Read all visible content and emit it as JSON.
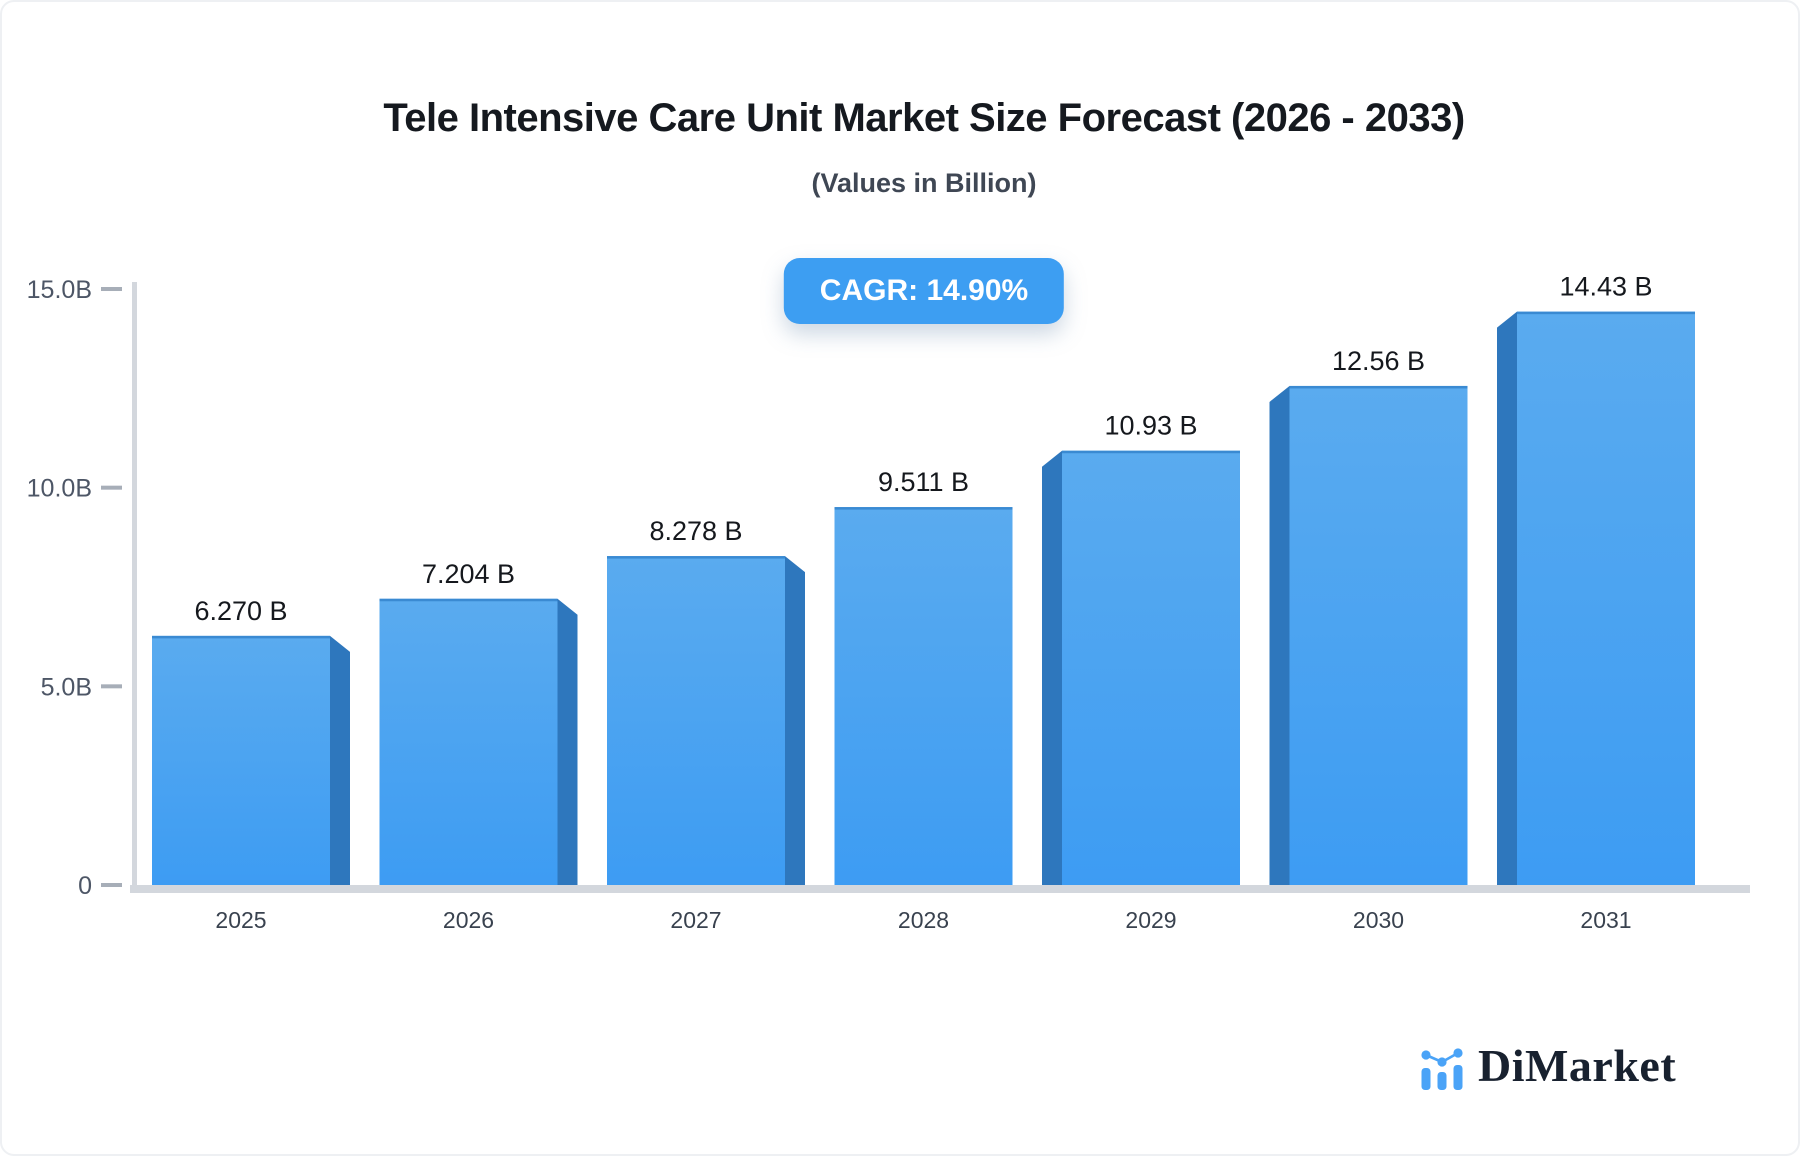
{
  "title": "Tele Intensive Care Unit Market Size Forecast (2026 - 2033)",
  "subtitle": "(Values in Billion)",
  "badge": {
    "label": "CAGR: 14.90%",
    "bg_color": "#3d9ef2",
    "text_color": "#ffffff"
  },
  "logo": {
    "name": "DiMarket",
    "icon": "bar-chart-logo-icon",
    "icon_color": "#4aa3f7",
    "text_color": "#18212f"
  },
  "chart_data": {
    "type": "bar",
    "categories": [
      "2025",
      "2026",
      "2027",
      "2028",
      "2029",
      "2030",
      "2031"
    ],
    "values": [
      6.27,
      7.204,
      8.278,
      9.511,
      10.93,
      12.56,
      14.43
    ],
    "value_labels": [
      "6.270 B",
      "7.204 B",
      "8.278 B",
      "9.511 B",
      "10.93 B",
      "12.56 B",
      "14.43 B"
    ],
    "y_ticks": [
      {
        "label": "15.0B",
        "value": 15
      },
      {
        "label": "10.0B",
        "value": 10
      },
      {
        "label": "5.0B",
        "value": 5
      },
      {
        "label": "0",
        "value": 0
      }
    ],
    "ylim": [
      0,
      15
    ],
    "xlabel": "",
    "ylabel": "",
    "grid": false,
    "legend": false,
    "style_3d": true,
    "bar_color_top": "#5aabef",
    "bar_color_bottom": "#3d9cf3",
    "bar_top_edge_color": "#3a8ad2",
    "bar_side_color": "#2e77bd",
    "axis_color": "#d3d7dd",
    "tick_dash_color": "#a7aeb8",
    "ytick_text_color": "#4d5666",
    "xtick_text_color": "#39424f",
    "value_text_color": "#15181d"
  }
}
